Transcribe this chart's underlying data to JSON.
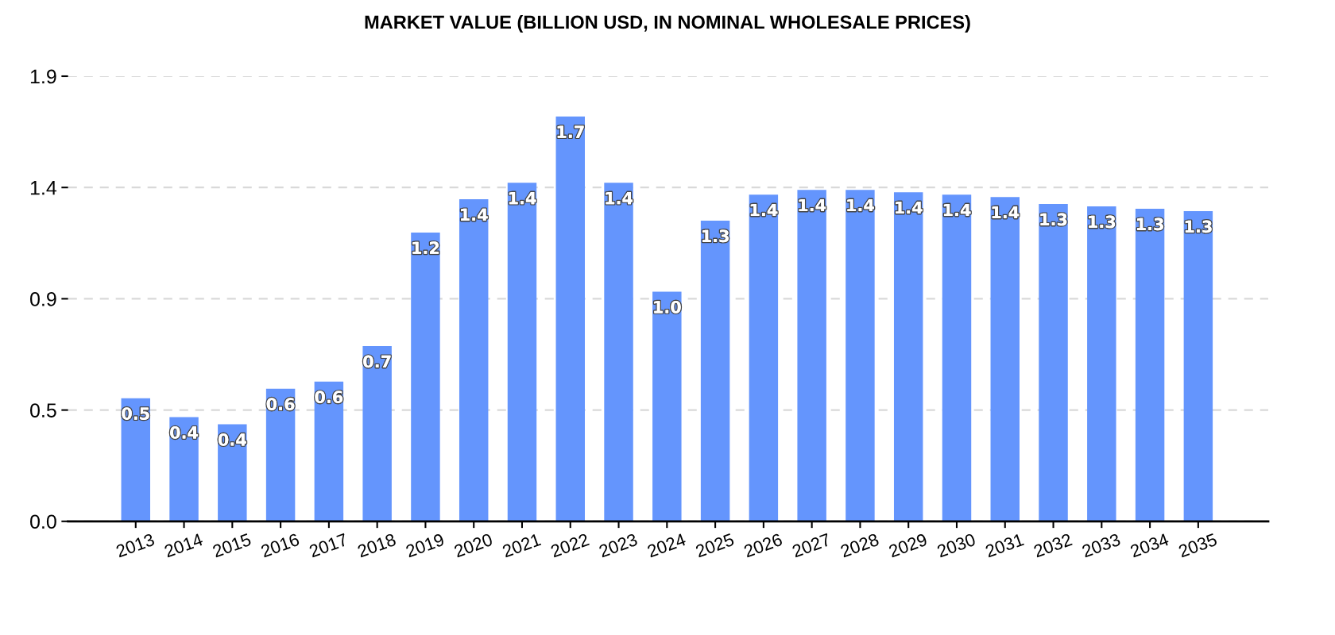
{
  "chart_data": {
    "type": "bar",
    "title": "MARKET VALUE (BILLION USD, IN NOMINAL WHOLESALE PRICES)",
    "categories": [
      "2013",
      "2014",
      "2015",
      "2016",
      "2017",
      "2018",
      "2019",
      "2020",
      "2021",
      "2022",
      "2023",
      "2024",
      "2025",
      "2026",
      "2027",
      "2028",
      "2029",
      "2030",
      "2031",
      "2032",
      "2033",
      "2034",
      "2035"
    ],
    "values": [
      0.52,
      0.44,
      0.41,
      0.56,
      0.59,
      0.74,
      1.22,
      1.36,
      1.43,
      1.71,
      1.43,
      0.97,
      1.27,
      1.38,
      1.4,
      1.4,
      1.39,
      1.38,
      1.37,
      1.34,
      1.33,
      1.32,
      1.31
    ],
    "value_labels": [
      "0.5",
      "0.4",
      "0.4",
      "0.6",
      "0.6",
      "0.7",
      "1.2",
      "1.4",
      "1.4",
      "1.7",
      "1.4",
      "1.0",
      "1.3",
      "1.4",
      "1.4",
      "1.4",
      "1.4",
      "1.4",
      "1.4",
      "1.3",
      "1.3",
      "1.3",
      "1.3"
    ],
    "color": "#6495fd",
    "ylim": [
      0,
      1.88
    ],
    "yticks": [
      {
        "value": 0,
        "label": "0.0"
      },
      {
        "value": 0.47,
        "label": "0.5"
      },
      {
        "value": 0.94,
        "label": "0.9"
      },
      {
        "value": 1.41,
        "label": "1.4"
      },
      {
        "value": 1.88,
        "label": "1.9"
      }
    ],
    "grid": "y"
  }
}
